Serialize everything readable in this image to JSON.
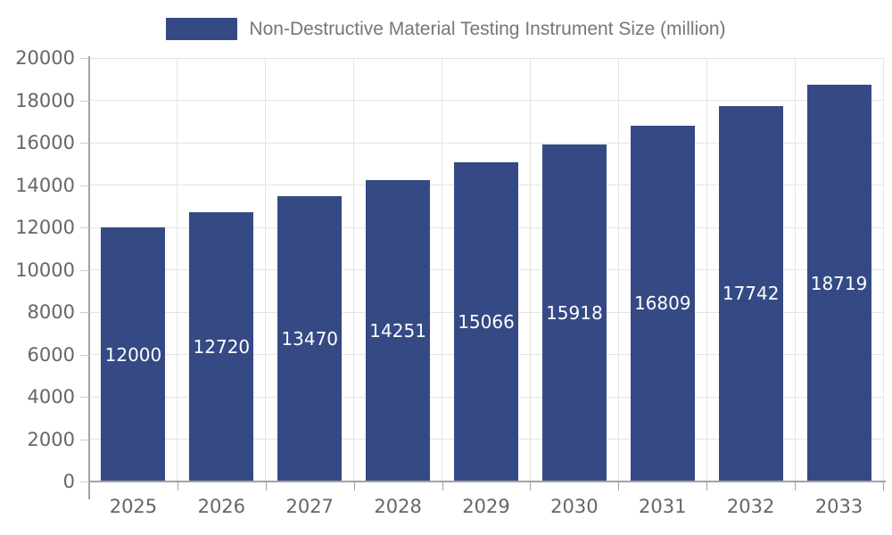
{
  "legend": {
    "label": "Non-Destructive Material Testing Instrument Size (million)"
  },
  "colors": {
    "bar": "#354A85",
    "value_label": "#ffffff",
    "axis_line": "#a2a2a2",
    "gridline": "#e4e4e4",
    "axis_text": "#666666",
    "legend_text": "#767676"
  },
  "chart_data": {
    "type": "bar",
    "title": "Non-Destructive Material Testing Instrument Size (million)",
    "categories": [
      "2025",
      "2026",
      "2027",
      "2028",
      "2029",
      "2030",
      "2031",
      "2032",
      "2033"
    ],
    "values": [
      12000,
      12720,
      13470,
      14251,
      15066,
      15918,
      16809,
      17742,
      18719
    ],
    "xlabel": "",
    "ylabel": "",
    "ylim": [
      0,
      20000
    ],
    "ytick_step": 2000,
    "ytick_labels": [
      "0",
      "2000",
      "4000",
      "6000",
      "8000",
      "10000",
      "12000",
      "14000",
      "16000",
      "18000",
      "20000"
    ],
    "grid": true,
    "legend_position": "top-center",
    "value_labels": "inside-center"
  }
}
